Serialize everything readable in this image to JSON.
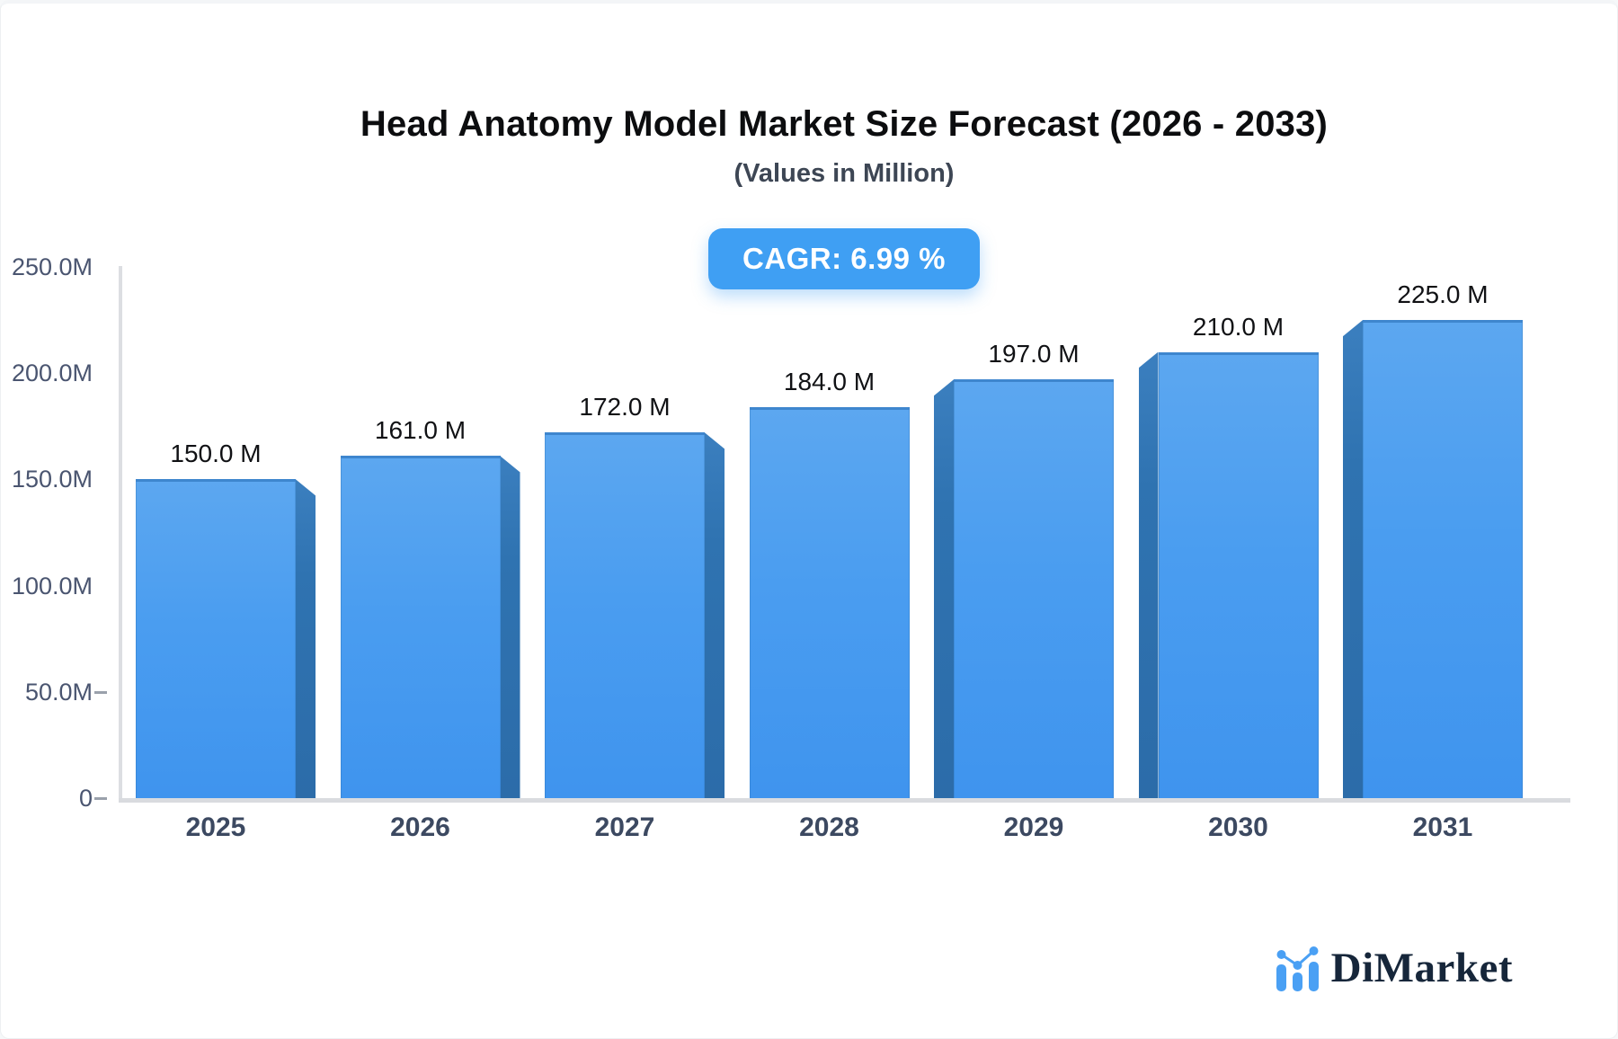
{
  "header": {
    "title": "Head Anatomy Model Market Size Forecast (2026 - 2033)",
    "subtitle": "(Values in Million)",
    "cagr_label": "CAGR: 6.99 %"
  },
  "chart_data": {
    "type": "bar",
    "title": "Head Anatomy Model Market Size Forecast (2026 - 2033)",
    "subtitle": "(Values in Million)",
    "cagr_percent": 6.99,
    "categories": [
      "2025",
      "2026",
      "2027",
      "2028",
      "2029",
      "2030",
      "2031"
    ],
    "values": [
      150,
      161,
      172,
      184,
      197,
      210,
      225
    ],
    "value_labels": [
      "150.0 M",
      "161.0 M",
      "172.0 M",
      "184.0 M",
      "197.0 M",
      "210.0 M",
      "225.0 M"
    ],
    "unit": "Million",
    "xlabel": "",
    "ylabel": "",
    "ylim": [
      0,
      250
    ],
    "y_ticks": [
      {
        "label": "250.0M",
        "value": 250,
        "dash": false
      },
      {
        "label": "200.0M",
        "value": 200,
        "dash": false
      },
      {
        "label": "150.0M",
        "value": 150,
        "dash": false
      },
      {
        "label": "100.0M",
        "value": 100,
        "dash": false
      },
      {
        "label": "50.0M",
        "value": 50,
        "dash": true
      },
      {
        "label": "0",
        "value": 0,
        "dash": true
      }
    ],
    "grid": false,
    "legend": "none",
    "bar_color": "#4a9df0",
    "bar_side_color": "#2f73b1",
    "value_label_color": "#101114",
    "accent_color": "#3f9ff3"
  },
  "branding": {
    "logo_text": "DiMarket",
    "logo_icon": "mini-bar-chart-icon",
    "logo_color": "#4aa0f4",
    "logo_text_color": "#16263a"
  }
}
